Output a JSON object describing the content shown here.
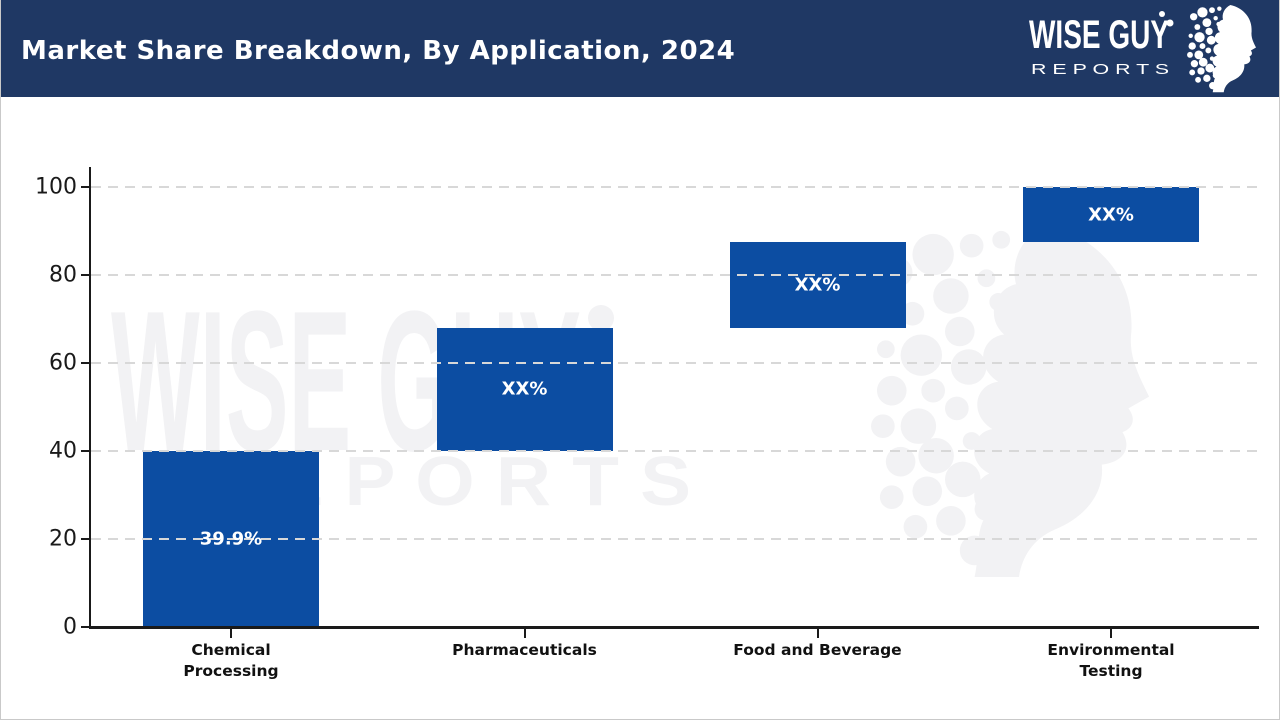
{
  "header": {
    "title": "Market Share Breakdown, By Application, 2024",
    "bg_color": "#1f3864",
    "logo": {
      "line1": "WISE GUY",
      "line2": "R E P O R T S"
    }
  },
  "watermark": {
    "line1": "WISE GUY",
    "line2": "R E P O R T S"
  },
  "chart_data": {
    "type": "bar",
    "subtype": "waterfall",
    "title": "Market Share Breakdown, By Application, 2024",
    "categories": [
      [
        "Chemical",
        "Processing"
      ],
      [
        "Pharmaceuticals"
      ],
      [
        "Food and Beverage"
      ],
      [
        "Environmental",
        "Testing"
      ]
    ],
    "segments": [
      {
        "start": 0,
        "end": 39.9,
        "label": "39.9%"
      },
      {
        "start": 40,
        "end": 68,
        "label": "XX%"
      },
      {
        "start": 68,
        "end": 87.5,
        "label": "XX%"
      },
      {
        "start": 87.5,
        "end": 100,
        "label": "XX%"
      }
    ],
    "yticks": [
      0,
      20,
      40,
      60,
      80,
      100
    ],
    "ylim": [
      0,
      104.5
    ],
    "grid": "horizontal-dashed-over-bars",
    "legend": "none",
    "bar_color": "#0c4da2",
    "bar_label_color": "#ffffff",
    "axis_color": "#1a1a1a",
    "grid_color": "#d8d8d8"
  }
}
